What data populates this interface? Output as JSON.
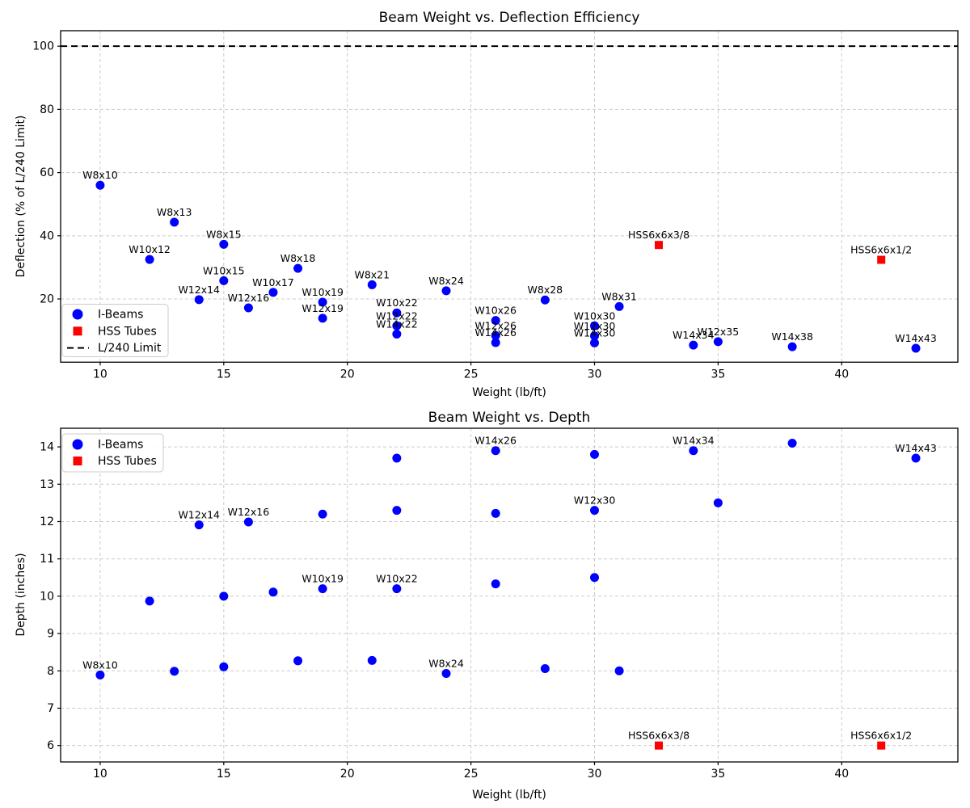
{
  "figure": {
    "background": "#ffffff",
    "ibeam_color": "#0000ff",
    "hss_color": "#ff0000",
    "limit_color": "#000000",
    "grid_color": "#cccccc"
  },
  "chart_data": [
    {
      "type": "scatter",
      "title": "Beam Weight vs. Deflection Efficiency",
      "xlabel": "Weight (lb/ft)",
      "ylabel": "Deflection (% of L/240 Limit)",
      "xlim": [
        8.4,
        44.7
      ],
      "ylim": [
        0,
        104.9
      ],
      "xticks": [
        10,
        15,
        20,
        25,
        30,
        35,
        40
      ],
      "yticks": [
        20,
        40,
        60,
        80,
        100
      ],
      "grid": true,
      "legend_position": "lower-left",
      "legend_entries": [
        {
          "label": "I-Beams",
          "marker": "circle",
          "color": "#0000ff"
        },
        {
          "label": "HSS Tubes",
          "marker": "square",
          "color": "#ff0000"
        },
        {
          "label": "L/240 Limit",
          "marker": "dashed-line",
          "color": "#000000"
        }
      ],
      "limit_line": {
        "y": 100,
        "label": "L/240 Limit",
        "style": "dashed",
        "color": "#000000"
      },
      "series": [
        {
          "name": "I-Beams",
          "marker": "circle",
          "color": "#0000ff",
          "points": [
            {
              "label": "W8x10",
              "x": 10,
              "y": 56.0,
              "labeled": true
            },
            {
              "label": "W10x12",
              "x": 12,
              "y": 32.5,
              "labeled": true
            },
            {
              "label": "W8x13",
              "x": 13,
              "y": 44.3,
              "labeled": true
            },
            {
              "label": "W12x14",
              "x": 14,
              "y": 19.8,
              "labeled": true
            },
            {
              "label": "W8x15",
              "x": 15,
              "y": 37.3,
              "labeled": true
            },
            {
              "label": "W10x15",
              "x": 15,
              "y": 25.8,
              "labeled": true
            },
            {
              "label": "W12x16",
              "x": 16,
              "y": 17.2,
              "labeled": true
            },
            {
              "label": "W10x17",
              "x": 17,
              "y": 22.1,
              "labeled": true
            },
            {
              "label": "W8x18",
              "x": 18,
              "y": 29.7,
              "labeled": true
            },
            {
              "label": "W10x19",
              "x": 19,
              "y": 19.0,
              "labeled": true
            },
            {
              "label": "W12x19",
              "x": 19,
              "y": 13.9,
              "labeled": true
            },
            {
              "label": "W8x21",
              "x": 21,
              "y": 24.5,
              "labeled": true
            },
            {
              "label": "W10x22",
              "x": 22,
              "y": 15.6,
              "labeled": true
            },
            {
              "label": "W12x22",
              "x": 22,
              "y": 11.5,
              "labeled": true
            },
            {
              "label": "W14x22",
              "x": 22,
              "y": 8.9,
              "labeled": true
            },
            {
              "label": "W8x24",
              "x": 24,
              "y": 22.6,
              "labeled": true
            },
            {
              "label": "W10x26",
              "x": 26,
              "y": 13.2,
              "labeled": true
            },
            {
              "label": "W12x26",
              "x": 26,
              "y": 8.4,
              "labeled": true
            },
            {
              "label": "W14x26",
              "x": 26,
              "y": 6.2,
              "labeled": true
            },
            {
              "label": "W8x28",
              "x": 28,
              "y": 19.7,
              "labeled": true
            },
            {
              "label": "W10x30",
              "x": 30,
              "y": 11.5,
              "labeled": true
            },
            {
              "label": "W12x30",
              "x": 30,
              "y": 8.3,
              "labeled": true
            },
            {
              "label": "W14x30",
              "x": 30,
              "y": 6.1,
              "labeled": true
            },
            {
              "label": "W8x31",
              "x": 31,
              "y": 17.6,
              "labeled": true
            },
            {
              "label": "W14x34",
              "x": 34,
              "y": 5.4,
              "labeled": true
            },
            {
              "label": "W12x35",
              "x": 35,
              "y": 6.5,
              "labeled": true
            },
            {
              "label": "W14x38",
              "x": 38,
              "y": 4.9,
              "labeled": true
            },
            {
              "label": "W14x43",
              "x": 43,
              "y": 4.4,
              "labeled": true
            }
          ]
        },
        {
          "name": "HSS Tubes",
          "marker": "square",
          "color": "#ff0000",
          "points": [
            {
              "label": "HSS6x6x3/8",
              "x": 32.6,
              "y": 37.1,
              "labeled": true
            },
            {
              "label": "HSS6x6x1/2",
              "x": 41.6,
              "y": 32.4,
              "labeled": true
            }
          ]
        }
      ]
    },
    {
      "type": "scatter",
      "title": "Beam Weight vs. Depth",
      "xlabel": "Weight (lb/ft)",
      "ylabel": "Depth (inches)",
      "xlim": [
        8.4,
        44.7
      ],
      "ylim": [
        5.56,
        14.5
      ],
      "xticks": [
        10,
        15,
        20,
        25,
        30,
        35,
        40
      ],
      "yticks": [
        6,
        7,
        8,
        9,
        10,
        11,
        12,
        13,
        14
      ],
      "grid": true,
      "legend_position": "upper-left",
      "legend_entries": [
        {
          "label": "I-Beams",
          "marker": "circle",
          "color": "#0000ff"
        },
        {
          "label": "HSS Tubes",
          "marker": "square",
          "color": "#ff0000"
        }
      ],
      "series": [
        {
          "name": "I-Beams",
          "marker": "circle",
          "color": "#0000ff",
          "points": [
            {
              "label": "W8x10",
              "x": 10,
              "y": 7.89,
              "labeled": true
            },
            {
              "label": "W10x12",
              "x": 12,
              "y": 9.87,
              "labeled": false
            },
            {
              "label": "W8x13",
              "x": 13,
              "y": 7.99,
              "labeled": false
            },
            {
              "label": "W12x14",
              "x": 14,
              "y": 11.91,
              "labeled": true
            },
            {
              "label": "W8x15",
              "x": 15,
              "y": 8.11,
              "labeled": false
            },
            {
              "label": "W10x15",
              "x": 15,
              "y": 10.0,
              "labeled": false
            },
            {
              "label": "W12x16",
              "x": 16,
              "y": 11.99,
              "labeled": true
            },
            {
              "label": "W10x17",
              "x": 17,
              "y": 10.11,
              "labeled": false
            },
            {
              "label": "W8x18",
              "x": 18,
              "y": 8.27,
              "labeled": false
            },
            {
              "label": "W10x19",
              "x": 19,
              "y": 10.2,
              "labeled": true
            },
            {
              "label": "W12x19",
              "x": 19,
              "y": 12.2,
              "labeled": false
            },
            {
              "label": "W8x21",
              "x": 21,
              "y": 8.28,
              "labeled": false
            },
            {
              "label": "W10x22",
              "x": 22,
              "y": 10.2,
              "labeled": true
            },
            {
              "label": "W12x22",
              "x": 22,
              "y": 12.3,
              "labeled": false
            },
            {
              "label": "W14x22",
              "x": 22,
              "y": 13.7,
              "labeled": false
            },
            {
              "label": "W8x24",
              "x": 24,
              "y": 7.93,
              "labeled": true
            },
            {
              "label": "W10x26",
              "x": 26,
              "y": 10.33,
              "labeled": false
            },
            {
              "label": "W12x26",
              "x": 26,
              "y": 12.22,
              "labeled": false
            },
            {
              "label": "W14x26",
              "x": 26,
              "y": 13.9,
              "labeled": true
            },
            {
              "label": "W8x28",
              "x": 28,
              "y": 8.06,
              "labeled": false
            },
            {
              "label": "W10x30",
              "x": 30,
              "y": 10.5,
              "labeled": false
            },
            {
              "label": "W12x30",
              "x": 30,
              "y": 12.3,
              "labeled": true
            },
            {
              "label": "W14x30",
              "x": 30,
              "y": 13.8,
              "labeled": false
            },
            {
              "label": "W8x31",
              "x": 31,
              "y": 8.0,
              "labeled": false
            },
            {
              "label": "W14x34",
              "x": 34,
              "y": 13.9,
              "labeled": true
            },
            {
              "label": "W12x35",
              "x": 35,
              "y": 12.5,
              "labeled": false
            },
            {
              "label": "W14x38",
              "x": 38,
              "y": 14.1,
              "labeled": false
            },
            {
              "label": "W14x43",
              "x": 43,
              "y": 13.7,
              "labeled": true
            }
          ]
        },
        {
          "name": "HSS Tubes",
          "marker": "square",
          "color": "#ff0000",
          "points": [
            {
              "label": "HSS6x6x3/8",
              "x": 32.6,
              "y": 6.0,
              "labeled": true
            },
            {
              "label": "HSS6x6x1/2",
              "x": 41.6,
              "y": 6.0,
              "labeled": true
            }
          ]
        }
      ]
    }
  ]
}
